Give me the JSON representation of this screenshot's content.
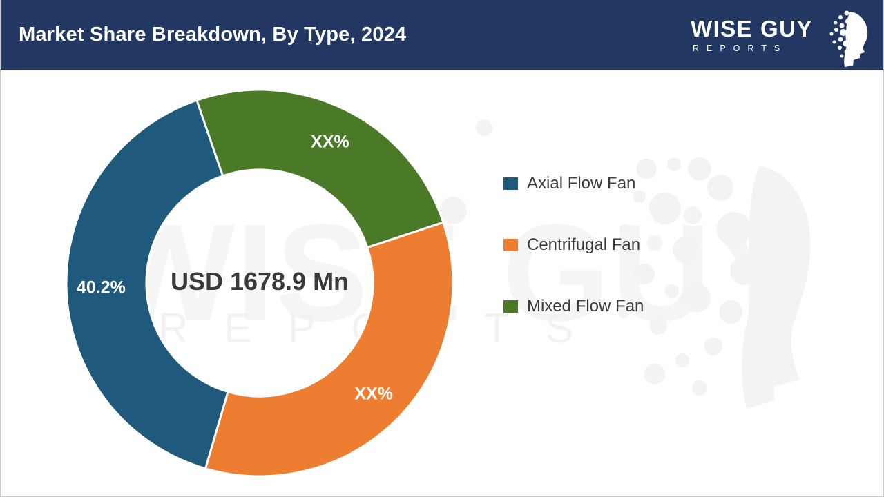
{
  "header": {
    "title": "Market Share Breakdown, By Type, 2024",
    "logo": {
      "line1": "WISE GUY",
      "line2": "REPORTS"
    }
  },
  "watermark": {
    "line1": "WISE GUY",
    "line2": "REPORTS"
  },
  "chart_data": {
    "type": "pie",
    "subtype": "donut",
    "title": "Market Share Breakdown, By Type, 2024",
    "center_label": "USD 1678.9 Mn",
    "start_angle_deg": -19,
    "inner_radius_ratio": 0.586,
    "outer_radius_px": 280,
    "legend_position": "right",
    "segments": [
      {
        "name": "Mixed Flow Fan",
        "label": "XX%",
        "value_pct": 25.2,
        "color": "#4A7A28"
      },
      {
        "name": "Centrifugal Fan",
        "label": "XX%",
        "value_pct": 34.6,
        "color": "#ED7D31"
      },
      {
        "name": "Axial Flow Fan",
        "label": "40.2%",
        "value_pct": 40.2,
        "color": "#1F5A7C"
      }
    ]
  },
  "legend": {
    "items": [
      {
        "label": "Axial Flow Fan",
        "color": "#1F5A7C"
      },
      {
        "label": "Centrifugal Fan",
        "color": "#ED7D31"
      },
      {
        "label": "Mixed Flow Fan",
        "color": "#4A7A28"
      }
    ]
  },
  "colors": {
    "header_bg": "#223862",
    "text_dark": "#3A3A3A",
    "watermark": "#F4F4F4",
    "page_border": "#C9C9C9"
  }
}
